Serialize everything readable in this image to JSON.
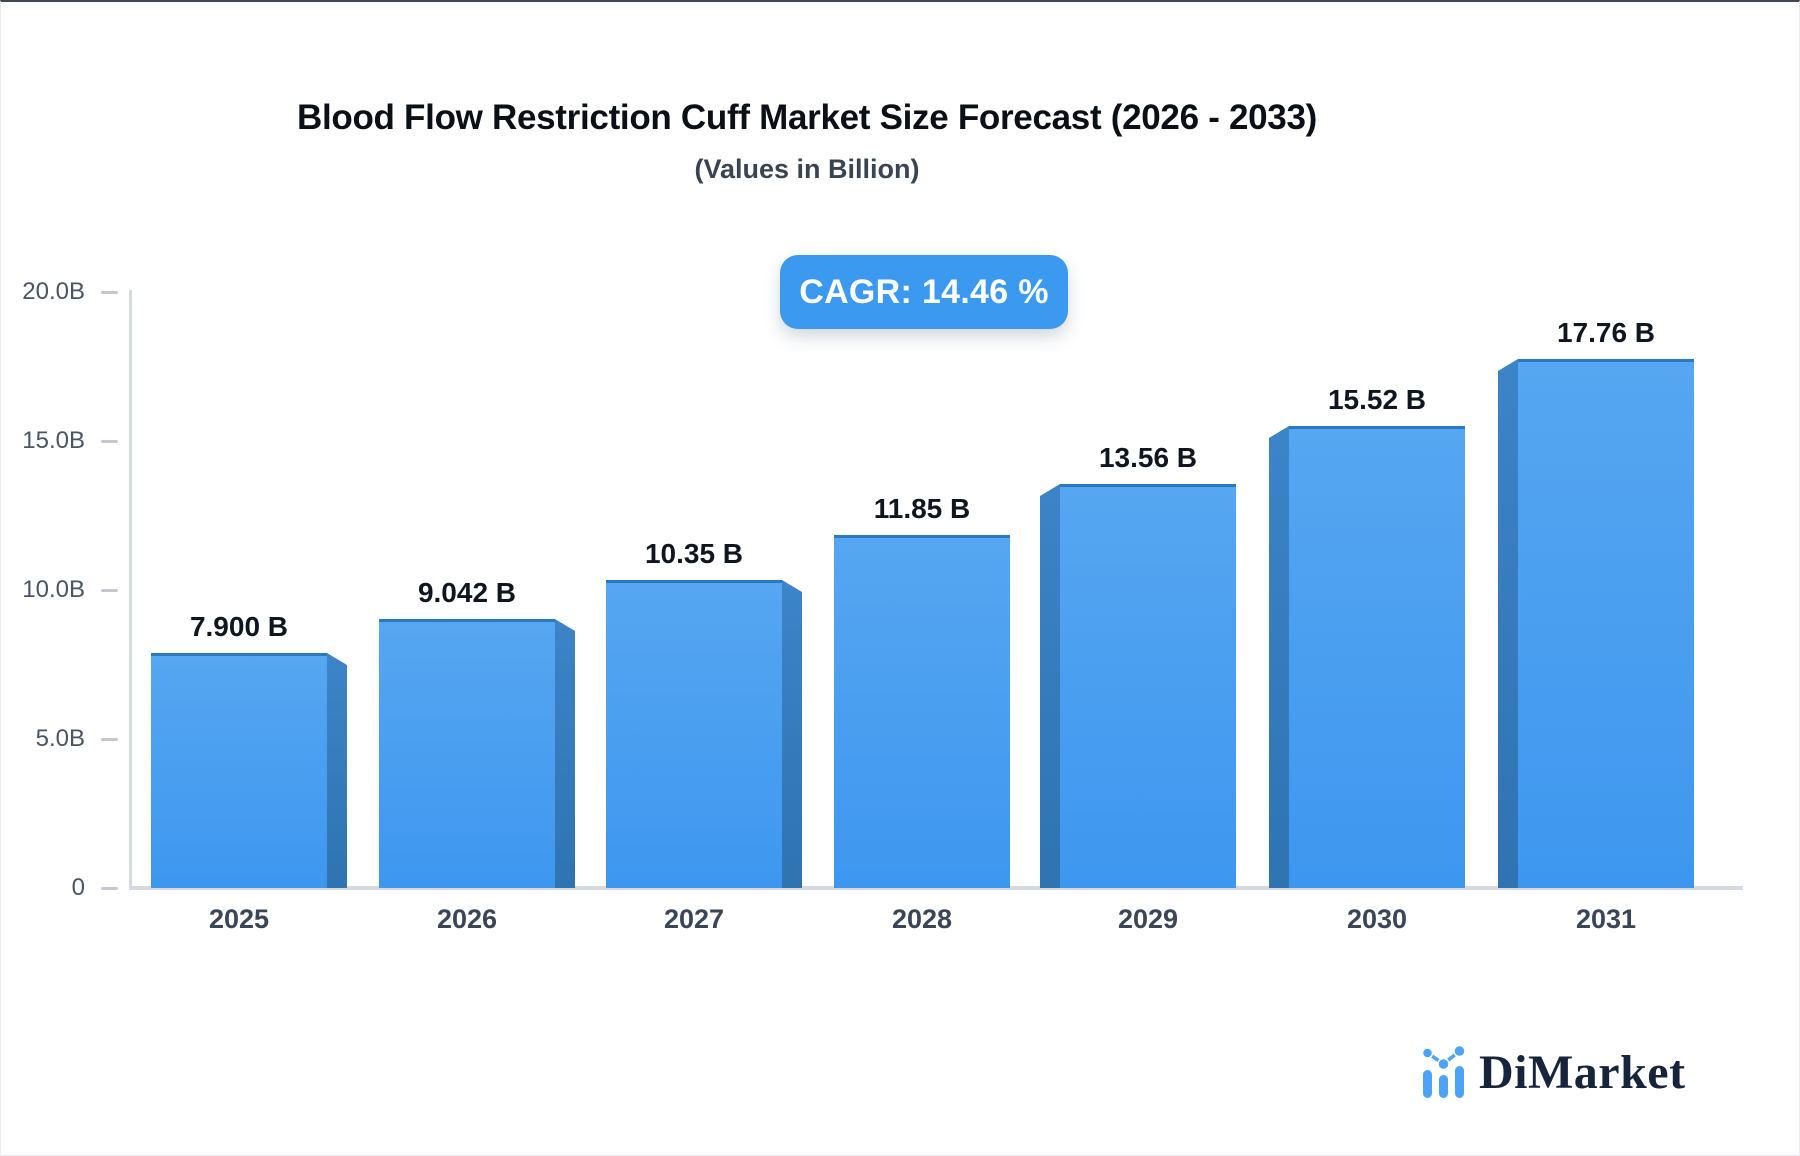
{
  "title": "Blood Flow Restriction Cuff Market Size Forecast (2026 - 2033)",
  "subtitle": "(Values in Billion)",
  "badge": {
    "label": "CAGR: 14.46 %",
    "background": "#3b99f0",
    "text_color": "#ffffff"
  },
  "chart_data": {
    "type": "bar",
    "title": "Blood Flow Restriction Cuff Market Size Forecast (2026 - 2033)",
    "subtitle": "(Values in Billion)",
    "categories": [
      "2025",
      "2026",
      "2027",
      "2028",
      "2029",
      "2030",
      "2031"
    ],
    "values": [
      7.9,
      9.042,
      10.35,
      11.85,
      13.56,
      15.52,
      17.76
    ],
    "value_labels": [
      "7.900 B",
      "9.042 B",
      "10.35 B",
      "11.85 B",
      "13.56 B",
      "15.52 B",
      "17.76 B"
    ],
    "xlabel": "",
    "ylabel": "",
    "ylim": [
      0,
      20
    ],
    "yticks": [
      {
        "value": 0,
        "label": "0"
      },
      {
        "value": 5,
        "label": "5.0B"
      },
      {
        "value": 10,
        "label": "10.0B"
      },
      {
        "value": 15,
        "label": "15.0B"
      },
      {
        "value": 20,
        "label": "20.0B"
      }
    ],
    "grid": false,
    "legend": "none",
    "annotation": "CAGR: 14.46 %",
    "style": "3d-extruded-bars",
    "colors": {
      "bar_face_top": "#56a6f1",
      "bar_face_bottom": "#3e97ef",
      "bar_top_edge": "#2a79c1",
      "bar_side": "#3379bb",
      "axis": "#d6dade",
      "tick_text": "#4a5563",
      "category_text": "#3a4657",
      "value_text": "#10161f"
    }
  },
  "logo": {
    "text": "DiMarket",
    "icon": "mini-bar-line-chart-icon",
    "icon_color": "#4da3f5"
  }
}
